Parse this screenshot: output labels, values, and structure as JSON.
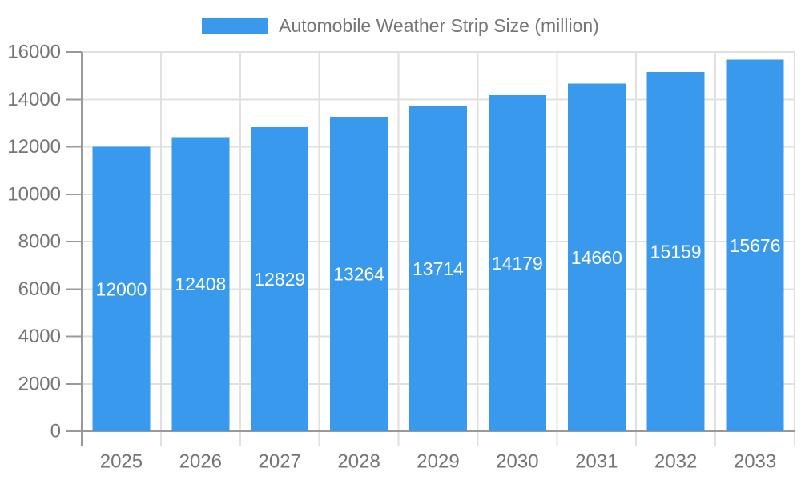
{
  "chart_data": {
    "type": "bar",
    "title": "Automobile Weather Strip Size (million)",
    "legend_entries": [
      "Automobile Weather Strip Size (million)"
    ],
    "legend_position": "top",
    "categories": [
      "2025",
      "2026",
      "2027",
      "2028",
      "2029",
      "2030",
      "2031",
      "2032",
      "2033"
    ],
    "values": [
      12000,
      12408,
      12829,
      13264,
      13714,
      14179,
      14660,
      15159,
      15676
    ],
    "xlabel": "",
    "ylabel": "",
    "ylim": [
      0,
      16000
    ],
    "ytick_step": 2000,
    "yticks": [
      0,
      2000,
      4000,
      6000,
      8000,
      10000,
      12000,
      14000,
      16000
    ],
    "grid": true,
    "value_label_position": "inside-center",
    "colors": {
      "bar": "#3999ED",
      "value_label": "#FFFFFF",
      "grid": "#E0E0E0",
      "axis": "#999999",
      "tick_label": "#757575",
      "legend_text": "#757575",
      "background": "#FFFFFF"
    }
  }
}
